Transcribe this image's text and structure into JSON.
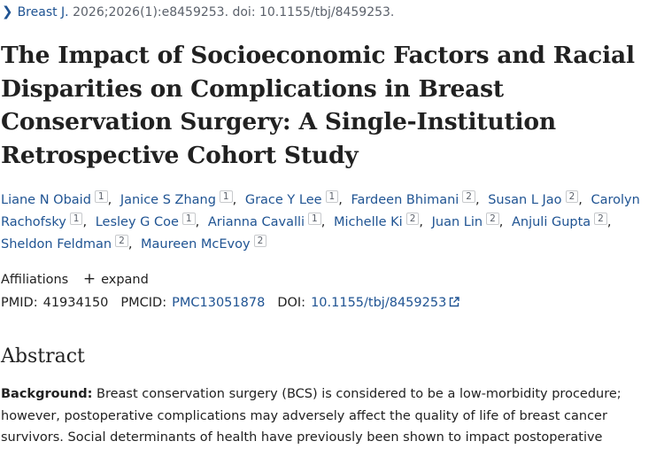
{
  "citation": {
    "journal": "Breast J.",
    "details": "2026;2026(1):e8459253. doi: 10.1155/tbj/8459253."
  },
  "article": {
    "title": "The Impact of Socioeconomic Factors and Racial Disparities on Complications in Breast Conservation Surgery: A Single-Institution Retrospective Cohort Study"
  },
  "authors": [
    {
      "name": "Liane N Obaid",
      "aff": "1"
    },
    {
      "name": "Janice S Zhang",
      "aff": "1"
    },
    {
      "name": "Grace Y Lee",
      "aff": "1"
    },
    {
      "name": "Fardeen Bhimani",
      "aff": "2"
    },
    {
      "name": "Susan L Jao",
      "aff": "2"
    },
    {
      "name": "Carolyn Rachofsky",
      "aff": "1"
    },
    {
      "name": "Lesley G Coe",
      "aff": "1"
    },
    {
      "name": "Arianna Cavalli",
      "aff": "1"
    },
    {
      "name": "Michelle Ki",
      "aff": "2"
    },
    {
      "name": "Juan Lin",
      "aff": "2"
    },
    {
      "name": "Anjuli Gupta",
      "aff": "2"
    },
    {
      "name": "Sheldon Feldman",
      "aff": "2"
    },
    {
      "name": "Maureen McEvoy",
      "aff": "2"
    }
  ],
  "affiliations": {
    "label": "Affiliations",
    "expand_label": "expand"
  },
  "ids": {
    "pmid_label": "PMID:",
    "pmid": "41934150",
    "pmcid_label": "PMCID:",
    "pmcid": "PMC13051878",
    "doi_label": "DOI:",
    "doi": "10.1155/tbj/8459253"
  },
  "abstract": {
    "heading": "Abstract",
    "background_label": "Background:",
    "background_text": " Breast conservation surgery (BCS) is considered to be a low-morbidity procedure; however, postoperative complications may adversely affect the quality of life of breast cancer survivors. Social determinants of health have previously been shown to impact postoperative"
  },
  "icons": {
    "chevron": "chevron-right-icon",
    "plus": "plus-icon",
    "external": "external-link-icon"
  },
  "colors": {
    "link": "#205493",
    "text": "#212121",
    "muted": "#5b616b"
  }
}
